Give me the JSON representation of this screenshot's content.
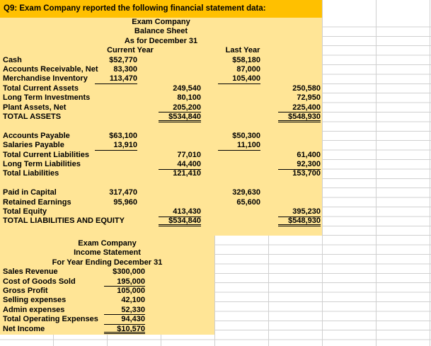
{
  "banner": {
    "text": "Q9: Exam Company reported the following financial statement data:"
  },
  "colors": {
    "banner_bg": "#FFC000",
    "sheet_bg": "#FFE596",
    "gridline": "#D0D0D0"
  },
  "balance_sheet": {
    "title_lines": [
      "Exam Company",
      "Balance Sheet",
      "As for December 31"
    ],
    "col_headers": [
      "Current Year",
      "Last Year"
    ],
    "rows": [
      {
        "label": "Cash",
        "c1": "$52,770",
        "c3": "$58,180"
      },
      {
        "label": "Accounts Receivable, Net",
        "c1": "83,300",
        "c3": "87,000"
      },
      {
        "label": "Merchandise Inventory",
        "c1": "113,470",
        "c3": "105,400",
        "u": [
          "c1",
          "c3"
        ]
      },
      {
        "label": "Total Current Assets",
        "c2": "249,540",
        "c4": "250,580"
      },
      {
        "label": "Long Term Investments",
        "c2": "80,100",
        "c4": "72,950"
      },
      {
        "label": "Plant Assets, Net",
        "c2": "205,200",
        "c4": "225,400",
        "u": [
          "c2",
          "c4"
        ]
      },
      {
        "label": "TOTAL ASSETS",
        "c2": "$534,840",
        "c4": "$548,930",
        "d": [
          "c2",
          "c4"
        ]
      },
      {
        "label": ""
      },
      {
        "label": "Accounts Payable",
        "c1": "$63,100",
        "c3": "$50,300"
      },
      {
        "label": "Salaries Payable",
        "c1": "13,910",
        "c3": "11,100",
        "u": [
          "c1",
          "c3"
        ]
      },
      {
        "label": "Total Current Liabilities",
        "c2": "77,010",
        "c4": "61,400"
      },
      {
        "label": "Long Term Liabilities",
        "c2": "44,400",
        "c4": "92,300",
        "u": [
          "c2",
          "c4"
        ]
      },
      {
        "label": "Total Liabilities",
        "c2": "121,410",
        "c4": "153,700"
      },
      {
        "label": ""
      },
      {
        "label": "Paid in Capital",
        "c1": "317,470",
        "c3": "329,630"
      },
      {
        "label": "Retained Earnings",
        "c1": "95,960",
        "c3": "65,600"
      },
      {
        "label": "Total Equity",
        "c2": "413,430",
        "c4": "395,230",
        "u": [
          "c2",
          "c4"
        ]
      },
      {
        "label": "TOTAL LIABILITIES AND EQUITY",
        "c2": "$534,840",
        "c4": "$548,930",
        "d": [
          "c2",
          "c4"
        ]
      }
    ]
  },
  "income_statement": {
    "title_lines": [
      "Exam Company",
      "Income Statement",
      "For Year Ending December 31"
    ],
    "rows": [
      {
        "label": "Sales Revenue",
        "value": "$300,000"
      },
      {
        "label": "Cost of Goods Sold",
        "value": "195,000",
        "u": true
      },
      {
        "label": "Gross Profit",
        "value": "105,000"
      },
      {
        "label": "Selling expenses",
        "value": "42,100"
      },
      {
        "label": "Admin expenses",
        "value": "52,330",
        "u": true
      },
      {
        "label": "Total Operating Expenses",
        "value": "94,430",
        "u": true
      },
      {
        "label": "Net Income",
        "value": "$10,570",
        "d": true
      }
    ]
  }
}
